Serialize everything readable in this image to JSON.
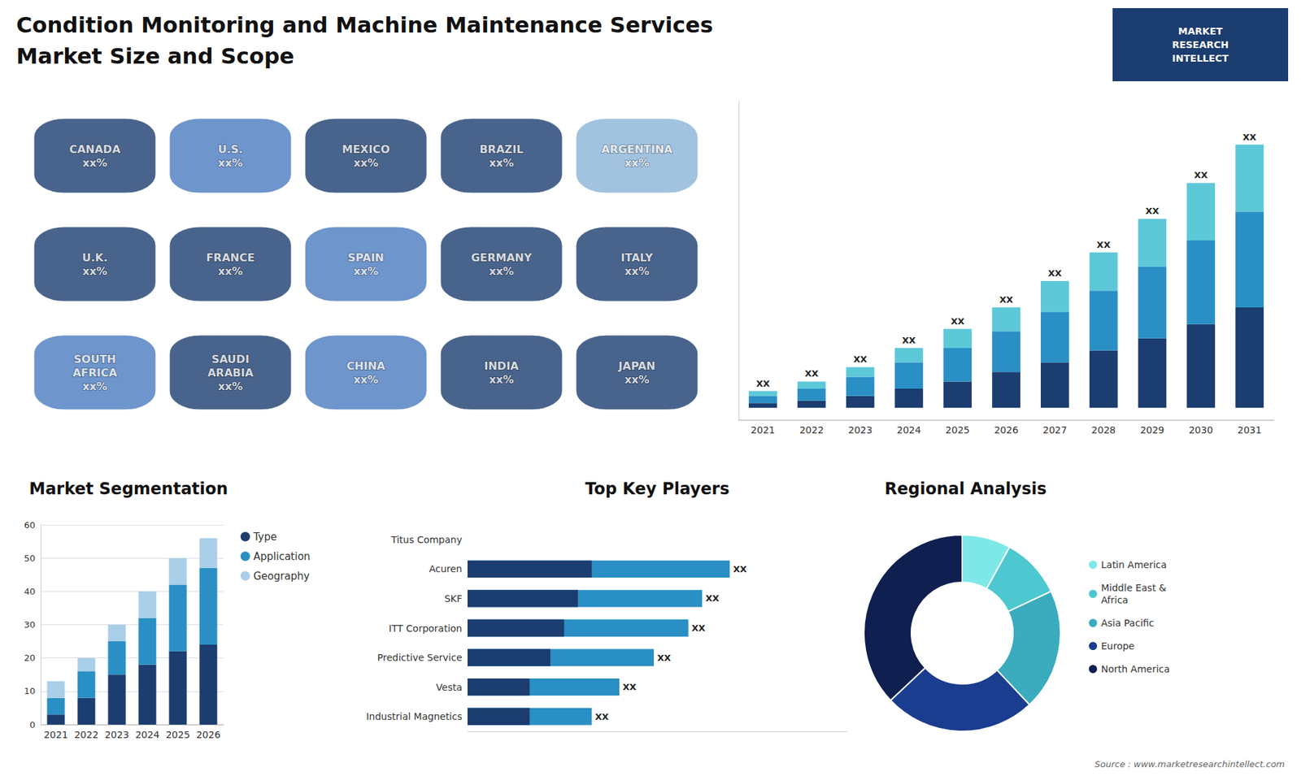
{
  "title": "Condition Monitoring and Machine Maintenance Services",
  "subtitle": "Market Size and Scope",
  "annotations": [
    "MARKET\nRESEARCH\nINTELLECT",
    "Source : www.marketresearchintellect.com"
  ],
  "chart_data": [
    {
      "type": "map",
      "categories": [
        "CANADA\nxx%",
        "U.S.\nxx%",
        "MEXICO\nxx%",
        "BRAZIL\nxx%",
        "ARGENTINA\nxx%",
        "U.K.\nxx%",
        "FRANCE\nxx%",
        "SPAIN\nxx%",
        "GERMANY\nxx%",
        "ITALY\nxx%",
        "SOUTH\nAFRICA\nxx%",
        "SAUDI\nARABIA\nxx%",
        "CHINA\nxx%",
        "INDIA\nxx%",
        "JAPAN\nxx%"
      ],
      "colors": [
        "#1b3d6f",
        "#4a7bbf",
        "#1b3d6f",
        "#1b3d6f",
        "#8ab4d8",
        "#1b3d6f",
        "#1b3d6f",
        "#4a7bbf",
        "#1b3d6f",
        "#1b3d6f",
        "#4a7bbf",
        "#1b3d6f",
        "#4a7bbf",
        "#1b3d6f",
        "#1b3d6f"
      ]
    },
    {
      "type": "bar",
      "stacked": true,
      "categories": [
        "2021",
        "2022",
        "2023",
        "2024",
        "2025",
        "2026",
        "2027",
        "2028",
        "2029",
        "2030",
        "2031"
      ],
      "series": [
        {
          "color": "#1b3d6f",
          "values": [
            2,
            3,
            5,
            8,
            11,
            15,
            19,
            24,
            29,
            35,
            42
          ]
        },
        {
          "color": "#2a8fc4",
          "values": [
            3,
            5,
            8,
            11,
            14,
            17,
            21,
            25,
            30,
            35,
            40
          ]
        },
        {
          "color": "#5dc8d8",
          "values": [
            2,
            3,
            4,
            6,
            8,
            10,
            13,
            16,
            20,
            24,
            28
          ]
        }
      ],
      "ylim": [
        -5,
        128
      ],
      "tick_labels": "x",
      "grid": false,
      "annotations": [
        "XX",
        "XX",
        "XX",
        "XX",
        "XX",
        "XX",
        "XX",
        "XX",
        "XX",
        "XX",
        "XX"
      ]
    },
    {
      "type": "bar",
      "title": "Market Segmentation",
      "stacked": true,
      "categories": [
        "2021",
        "2022",
        "2023",
        "2024",
        "2025",
        "2026"
      ],
      "series": [
        {
          "name": "Type",
          "color": "#1b3d6f",
          "values": [
            3,
            8,
            15,
            18,
            22,
            24
          ]
        },
        {
          "name": "Application",
          "color": "#2a8fc4",
          "values": [
            5,
            8,
            10,
            14,
            20,
            23
          ]
        },
        {
          "name": "Geography",
          "color": "#aacfe8",
          "values": [
            5,
            4,
            5,
            8,
            8,
            9
          ]
        }
      ],
      "ylim": [
        0,
        60
      ],
      "yticks": [
        0,
        10,
        20,
        30,
        40,
        50,
        60
      ],
      "grid": true,
      "legend": "right"
    },
    {
      "type": "bar",
      "title": "Top Key Players",
      "orientation": "horizontal",
      "stacked": false,
      "categories": [
        "Titus Company",
        "Acuren",
        "SKF",
        "ITT Corporation",
        "Predictive Service",
        "Vesta",
        "Industrial Magnetics"
      ],
      "series": [
        {
          "color": "#2a8fc4",
          "values": [
            0,
            38,
            34,
            32,
            27,
            22,
            18
          ]
        },
        {
          "color": "#1b3d6f",
          "values": [
            0,
            18,
            16,
            14,
            12,
            9,
            9
          ]
        }
      ],
      "xlim": [
        0,
        55
      ],
      "tick_labels": "y",
      "grid": false,
      "annotations": [
        null,
        "XX",
        "XX",
        "XX",
        "XX",
        "XX",
        "XX"
      ]
    },
    {
      "type": "donut",
      "title": "Regional Analysis",
      "categories": [
        "Latin America",
        "Middle East &\nAfrica",
        "Asia Pacific",
        "Europe",
        "North America"
      ],
      "values": [
        8,
        10,
        20,
        25,
        37
      ],
      "colors": [
        "#7ee8e8",
        "#4dc8d0",
        "#3aacbe",
        "#1b3d8f",
        "#0e1f50"
      ],
      "legend": "right"
    }
  ]
}
